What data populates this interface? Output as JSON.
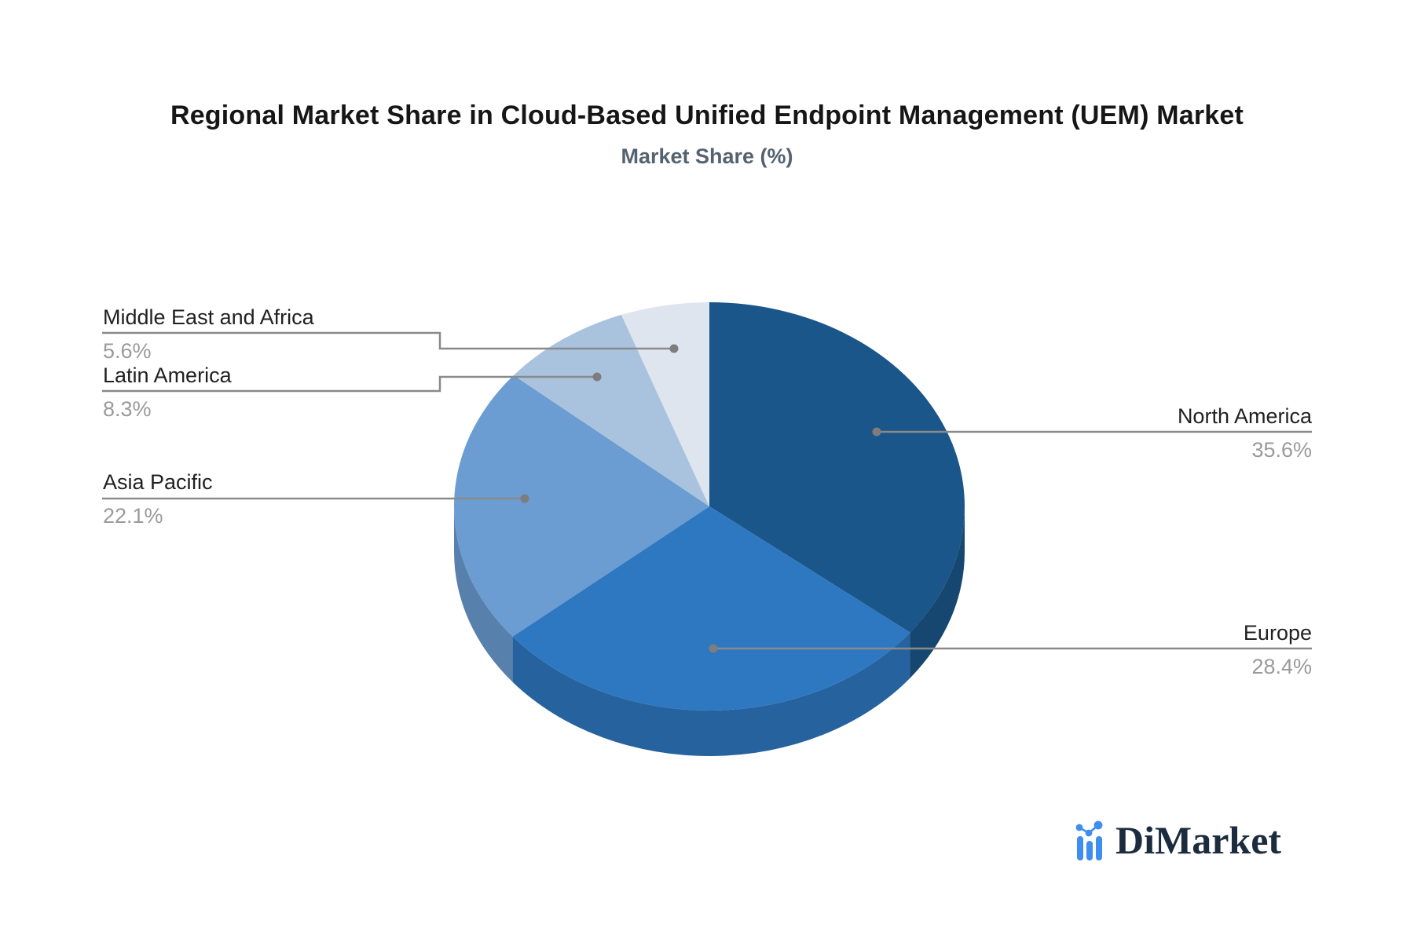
{
  "header": {
    "title": "Regional Market Share in Cloud-Based Unified Endpoint Management (UEM) Market",
    "subtitle": "Market Share (%)"
  },
  "logo": {
    "text": "DiMarket",
    "icon": "bar-chart-with-trend-dots-icon",
    "icon_color": "#3e8ef0",
    "text_color": "#1c2c3f"
  },
  "chart_data": {
    "type": "pie",
    "style": "3d",
    "title": "Regional Market Share in Cloud-Based Unified Endpoint Management (UEM) Market",
    "subtitle": "Market Share (%)",
    "start_angle_deg": 0,
    "direction": "clockwise",
    "legend_position": "none",
    "labels_layout": "outside-with-leader-lines",
    "slices": [
      {
        "label": "North America",
        "value": 35.6,
        "display": "35.6%",
        "color": "#1b568a"
      },
      {
        "label": "Europe",
        "value": 28.4,
        "display": "28.4%",
        "color": "#2e78c1"
      },
      {
        "label": "Asia Pacific",
        "value": 22.1,
        "display": "22.1%",
        "color": "#6b9cd2"
      },
      {
        "label": "Latin America",
        "value": 8.3,
        "display": "8.3%",
        "color": "#a9c3df"
      },
      {
        "label": "Middle East and Africa",
        "value": 5.6,
        "display": "5.6%",
        "color": "#dfe5ee"
      }
    ],
    "label_color": "#212121",
    "value_color": "#9a9a9a",
    "leader_line_color": "#8a8a8a",
    "leader_dot_color": "#7d7d7d"
  }
}
